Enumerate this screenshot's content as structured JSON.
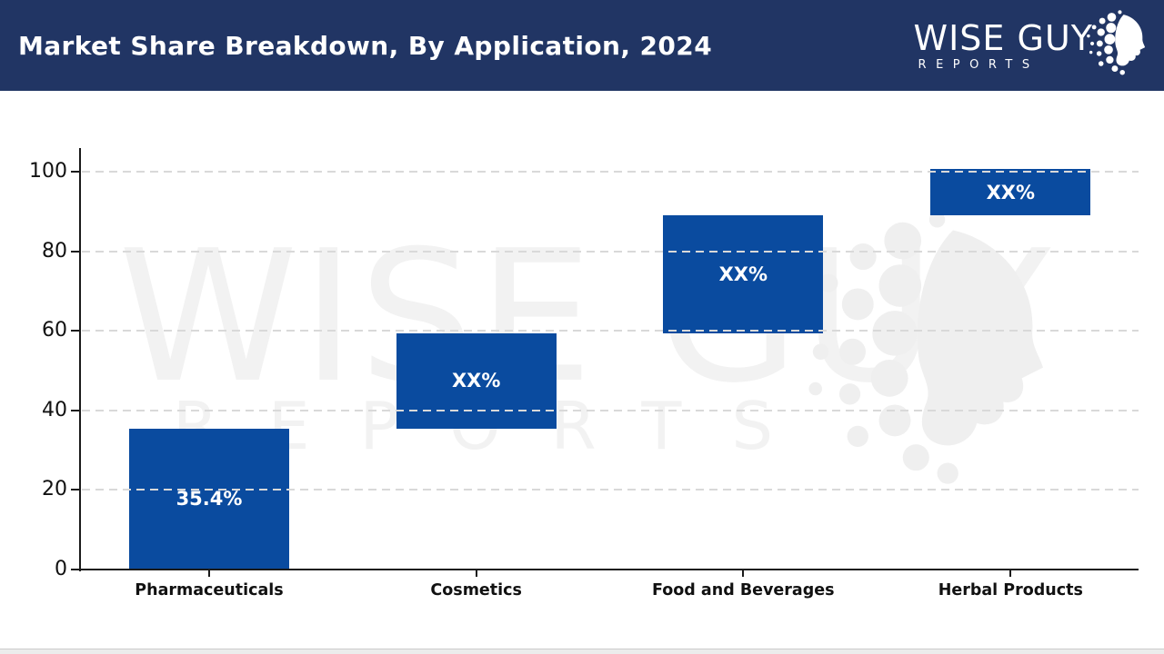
{
  "header": {
    "title": "Market Share Breakdown, By Application, 2024",
    "logo": {
      "line1": "WISE GUY",
      "line2": "REPORTS"
    }
  },
  "watermark": {
    "line1": "WISE GUY",
    "line2": "REPORTS"
  },
  "colors": {
    "header_bg": "#213564",
    "bar": "#0a4b9f",
    "grid": "#d9d9d9",
    "axis": "#1a1a1a",
    "bar_label": "#ffffff"
  },
  "chart_data": {
    "type": "bar",
    "subtype": "waterfall",
    "title": "Market Share Breakdown, By Application, 2024",
    "categories": [
      "Pharmaceuticals",
      "Cosmetics",
      "Food and Beverages",
      "Herbal Products"
    ],
    "segments": [
      {
        "category": "Pharmaceuticals",
        "start": 0,
        "end": 35.4,
        "size": 35.4,
        "label": "35.4%"
      },
      {
        "category": "Cosmetics",
        "start": 35.4,
        "end": 59.4,
        "size": 24.0,
        "label": "XX%"
      },
      {
        "category": "Food and Beverages",
        "start": 59.4,
        "end": 89.0,
        "size": 29.6,
        "label": "XX%"
      },
      {
        "category": "Herbal Products",
        "start": 89.0,
        "end": 100.7,
        "size": 11.7,
        "label": "XX%"
      }
    ],
    "xlabel": "",
    "ylabel": "",
    "ylim": [
      0,
      100
    ],
    "yticks": [
      0,
      20,
      40,
      60,
      80,
      100
    ],
    "grid": "horizontal-dashed",
    "legend": "none",
    "bar_color": "#0a4b9f"
  }
}
